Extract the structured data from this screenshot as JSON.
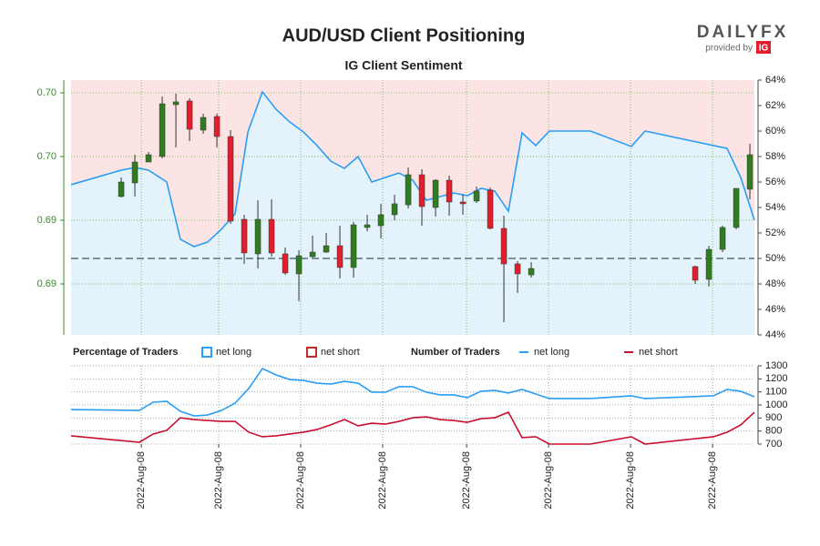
{
  "logo": {
    "brand": "DAILYFX",
    "provided": "provided by",
    "ig": "IG"
  },
  "chart_data": [
    {
      "type": "candlestick",
      "title": "AUD/USD Client Positioning",
      "subtitle": "IG Client Sentiment",
      "x": [
        0,
        1,
        2,
        3,
        4,
        5,
        6,
        7,
        8,
        9,
        10,
        11,
        12,
        13,
        14,
        15,
        16,
        17,
        18,
        19,
        20,
        21,
        22,
        23,
        24,
        25,
        26,
        27,
        28,
        29,
        30,
        42,
        43,
        44,
        45,
        46
      ],
      "open": [
        0.69586,
        0.69693,
        0.69857,
        0.699,
        0.70307,
        0.70336,
        0.70107,
        0.70214,
        0.70057,
        0.69407,
        0.69136,
        0.69407,
        0.69136,
        0.68979,
        0.69114,
        0.6915,
        0.692,
        0.69029,
        0.69343,
        0.69357,
        0.69443,
        0.69521,
        0.69757,
        0.695,
        0.69714,
        0.69543,
        0.6955,
        0.69636,
        0.69336,
        0.69057,
        0.68971,
        0.69036,
        0.68936,
        0.69171,
        0.69343,
        0.69643
      ],
      "high": [
        0.69736,
        0.69914,
        0.69936,
        0.70371,
        0.70393,
        0.70357,
        0.70236,
        0.70236,
        0.70107,
        0.69443,
        0.69557,
        0.69564,
        0.69186,
        0.69164,
        0.69279,
        0.693,
        0.69357,
        0.69386,
        0.69443,
        0.69529,
        0.696,
        0.69814,
        0.698,
        0.69721,
        0.6975,
        0.696,
        0.69664,
        0.69657,
        0.69436,
        0.69079,
        0.69071,
        0.69043,
        0.692,
        0.69357,
        0.6965,
        0.7
      ],
      "low": [
        0.69579,
        0.69586,
        0.69857,
        0.69886,
        0.69971,
        0.70021,
        0.70079,
        0.69971,
        0.69371,
        0.69057,
        0.69021,
        0.69114,
        0.68971,
        0.68764,
        0.69107,
        0.69143,
        0.68943,
        0.6895,
        0.69314,
        0.69257,
        0.694,
        0.69493,
        0.69357,
        0.69429,
        0.69436,
        0.69443,
        0.69536,
        0.69329,
        0.686,
        0.68829,
        0.6895,
        0.689,
        0.68879,
        0.6915,
        0.69329,
        0.69564
      ],
      "close": [
        0.697,
        0.69857,
        0.69914,
        0.70314,
        0.70329,
        0.70114,
        0.70207,
        0.70057,
        0.69393,
        0.69143,
        0.69407,
        0.69143,
        0.68986,
        0.69121,
        0.6915,
        0.692,
        0.69029,
        0.69364,
        0.69364,
        0.69443,
        0.69529,
        0.69757,
        0.69507,
        0.69714,
        0.69543,
        0.69529,
        0.69629,
        0.69336,
        0.69057,
        0.68979,
        0.69021,
        0.68929,
        0.69171,
        0.69343,
        0.6965,
        0.69914
      ],
      "up_color": "#2f7d1f",
      "down_color": "#e21d2e",
      "xlim": [
        -3.67,
        46.33
      ],
      "ylim": [
        0.685,
        0.705
      ],
      "yticks": [
        {
          "value": 0.704,
          "label": "0.70"
        },
        {
          "value": 0.699,
          "label": "0.70"
        },
        {
          "value": 0.694,
          "label": "0.69"
        },
        {
          "value": 0.689,
          "label": "0.69"
        }
      ],
      "y2lim": [
        44,
        64
      ],
      "y2ticks": [
        {
          "value": 44,
          "label": "44%"
        },
        {
          "value": 46,
          "label": "46%"
        },
        {
          "value": 48,
          "label": "48%"
        },
        {
          "value": 50,
          "label": "50%"
        },
        {
          "value": 52,
          "label": "52%"
        },
        {
          "value": 54,
          "label": "54%"
        },
        {
          "value": 56,
          "label": "56%"
        },
        {
          "value": 58,
          "label": "58%"
        },
        {
          "value": 60,
          "label": "60%"
        },
        {
          "value": 62,
          "label": "62%"
        },
        {
          "value": 64,
          "label": "64%"
        }
      ],
      "y2_reference": 50,
      "sentiment": {
        "axis": "y2",
        "color": "#2a9df4",
        "fill": "#e4f3fb",
        "x": [
          -3.67,
          0,
          1,
          2,
          3.33,
          4.33,
          5.33,
          6.33,
          7.33,
          8.33,
          9.27,
          10.33,
          11.33,
          12.33,
          13.33,
          14.33,
          15.33,
          16.33,
          17.33,
          18.33,
          19.33,
          20.33,
          21.33,
          22.33,
          23.33,
          24.33,
          25.33,
          26.33,
          27.33,
          28.33,
          29.33,
          30.33,
          31.33,
          34.33,
          37.33,
          38.33,
          43.33,
          44.33,
          45.33,
          46.33
        ],
        "values": [
          55.79,
          56.93,
          57.14,
          56.93,
          56.0,
          51.5,
          50.93,
          51.29,
          52.29,
          53.5,
          59.93,
          63.07,
          61.71,
          60.71,
          59.93,
          58.86,
          57.64,
          57.07,
          58.0,
          56.0,
          56.36,
          56.71,
          56.14,
          54.57,
          54.86,
          55.14,
          54.93,
          55.5,
          55.29,
          53.71,
          59.86,
          58.86,
          60.0,
          60.0,
          58.79,
          60.0,
          58.86,
          58.64,
          56.36,
          53.0
        ]
      },
      "background": "#fce4e4",
      "grid": true,
      "legend_title": "Percentage of Traders",
      "legend": [
        {
          "name": "net long",
          "color": "#2a9df4"
        },
        {
          "name": "net short",
          "color": "#c62828"
        }
      ]
    },
    {
      "type": "line",
      "legend_title": "Number of Traders",
      "xlim": [
        -3.67,
        46.33
      ],
      "xticks": [
        {
          "value": 1.47,
          "label": "2022-Aug-08"
        },
        {
          "value": 7.13,
          "label": "2022-Aug-08"
        },
        {
          "value": 13.13,
          "label": "2022-Aug-08"
        },
        {
          "value": 19.13,
          "label": "2022-Aug-08"
        },
        {
          "value": 25.27,
          "label": "2022-Aug-08"
        },
        {
          "value": 31.27,
          "label": "2022-Aug-08"
        },
        {
          "value": 37.27,
          "label": "2022-Aug-08"
        },
        {
          "value": 43.27,
          "label": "2022-Aug-08"
        }
      ],
      "ylim": [
        700,
        1300
      ],
      "yticks": [
        700,
        800,
        900,
        1000,
        1100,
        1200,
        1300
      ],
      "grid": true,
      "series": [
        {
          "name": "net long",
          "color": "#2a9df4",
          "x": [
            -3.67,
            1.33,
            2.33,
            3.33,
            4.33,
            5.33,
            6.33,
            7.33,
            8.33,
            9.33,
            10.33,
            11.33,
            12.33,
            13.33,
            14.33,
            15.33,
            16.33,
            17.33,
            18.33,
            19.33,
            20.33,
            21.33,
            22.33,
            23.33,
            24.33,
            25.33,
            26.33,
            27.33,
            28.33,
            29.33,
            31.33,
            34.33,
            37.33,
            38.33,
            43.33,
            44.33,
            45.33,
            46.33
          ],
          "values": [
            965,
            958,
            1021,
            1028,
            951,
            916,
            923,
            958,
            1014,
            1126,
            1279,
            1230,
            1195,
            1188,
            1167,
            1160,
            1181,
            1167,
            1098,
            1098,
            1140,
            1140,
            1098,
            1077,
            1077,
            1056,
            1105,
            1112,
            1091,
            1119,
            1049,
            1049,
            1070,
            1049,
            1070,
            1119,
            1105,
            1063
          ]
        },
        {
          "name": "net short",
          "color": "#c8102e",
          "x": [
            -3.67,
            1.33,
            2.33,
            3.33,
            4.33,
            5.33,
            6.33,
            7.33,
            8.33,
            9.33,
            10.33,
            11.33,
            12.33,
            13.33,
            14.33,
            15.33,
            16.33,
            17.33,
            18.33,
            19.33,
            20.33,
            21.33,
            22.33,
            23.33,
            24.33,
            25.33,
            26.33,
            27.33,
            28.33,
            29.33,
            30.33,
            31.33,
            34.33,
            37.33,
            38.33,
            43.33,
            44.33,
            45.33,
            46.33
          ],
          "values": [
            763,
            714,
            777,
            805,
            902,
            888,
            881,
            874,
            874,
            791,
            756,
            763,
            777,
            791,
            812,
            847,
            888,
            840,
            860,
            853,
            874,
            902,
            909,
            888,
            881,
            867,
            895,
            902,
            944,
            749,
            756,
            700,
            700,
            756,
            700,
            756,
            791,
            847,
            944
          ]
        }
      ]
    }
  ]
}
